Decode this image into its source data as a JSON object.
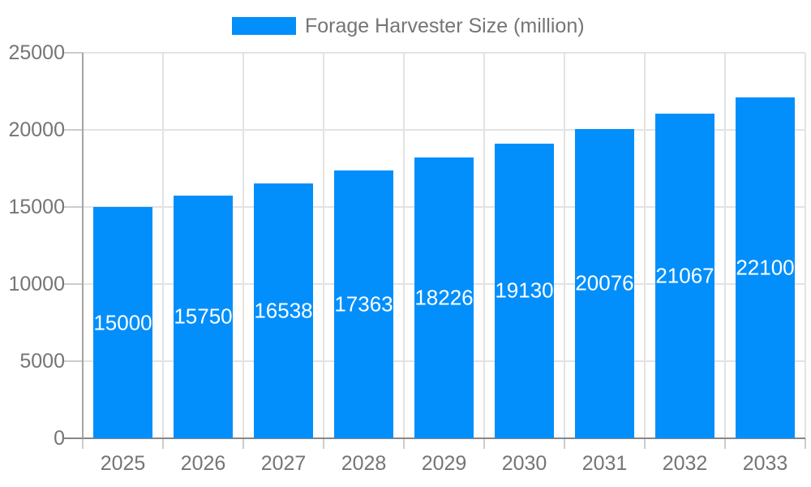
{
  "chart_data": {
    "type": "bar",
    "title": "Forage Harvester Size (million)",
    "categories": [
      "2025",
      "2026",
      "2027",
      "2028",
      "2029",
      "2030",
      "2031",
      "2032",
      "2033"
    ],
    "values": [
      15000,
      15750,
      16538,
      17363,
      18226,
      19130,
      20076,
      21067,
      22100
    ],
    "series": [
      {
        "name": "Forage Harvester Size (million)",
        "values": [
          15000,
          15750,
          16538,
          17363,
          18226,
          19130,
          20076,
          21067,
          22100
        ]
      }
    ],
    "xlabel": "",
    "ylabel": "",
    "ylim": [
      0,
      25000
    ],
    "yticks": [
      0,
      5000,
      10000,
      15000,
      20000,
      25000
    ],
    "grid": true,
    "legend_position": "top-center",
    "bar_value_labels": "inside-center",
    "colors": {
      "bar": "#038ffb",
      "bar_label_text": "#ffffff",
      "axis_text": "#757575",
      "gridline": "#e3e3e3",
      "baseline": "#878787",
      "axis_line": "#a5a5a5",
      "tick": "#cccccc",
      "background": "#ffffff"
    }
  }
}
